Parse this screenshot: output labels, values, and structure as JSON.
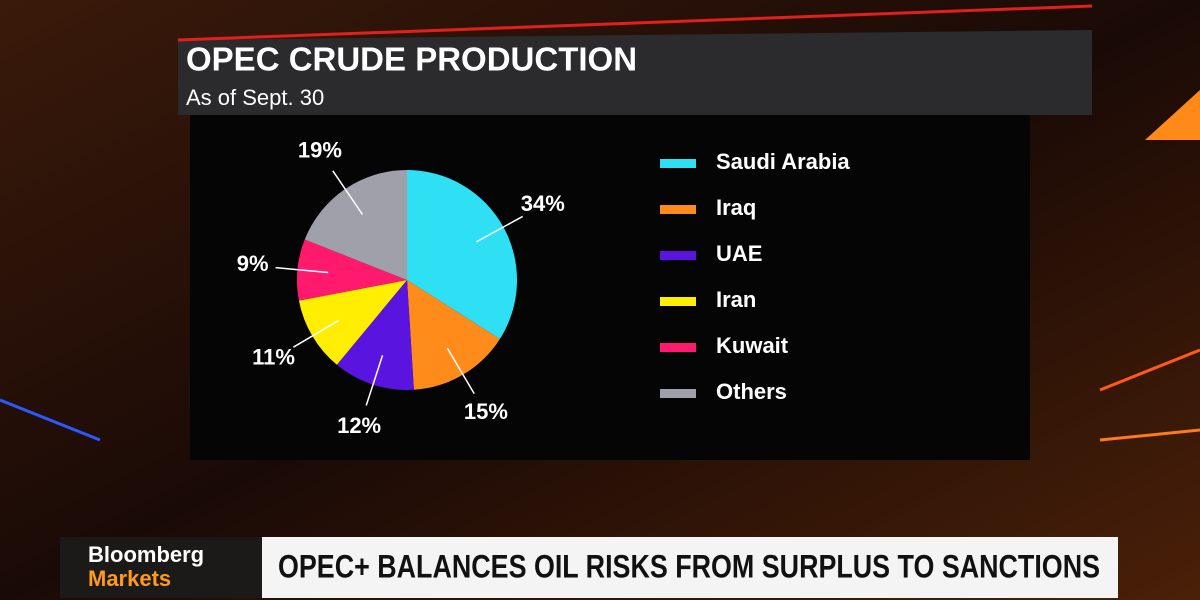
{
  "chart_data": {
    "type": "pie",
    "title": "OPEC CRUDE PRODUCTION",
    "subtitle": "As of Sept. 30",
    "categories": [
      "Saudi Arabia",
      "Iraq",
      "UAE",
      "Iran",
      "Kuwait",
      "Others"
    ],
    "values": [
      34,
      15,
      12,
      11,
      9,
      19
    ],
    "value_labels": [
      "34%",
      "15%",
      "12%",
      "11%",
      "9%",
      "19%"
    ],
    "colors": [
      "#2fe0f5",
      "#ff8c1a",
      "#5a14e0",
      "#ffee00",
      "#ff1a6e",
      "#a0a0aa"
    ]
  },
  "lower_third": {
    "brand": "Bloomberg",
    "channel": "Markets",
    "headline": "OPEC+ BALANCES OIL RISKS FROM SURPLUS TO SANCTIONS"
  }
}
